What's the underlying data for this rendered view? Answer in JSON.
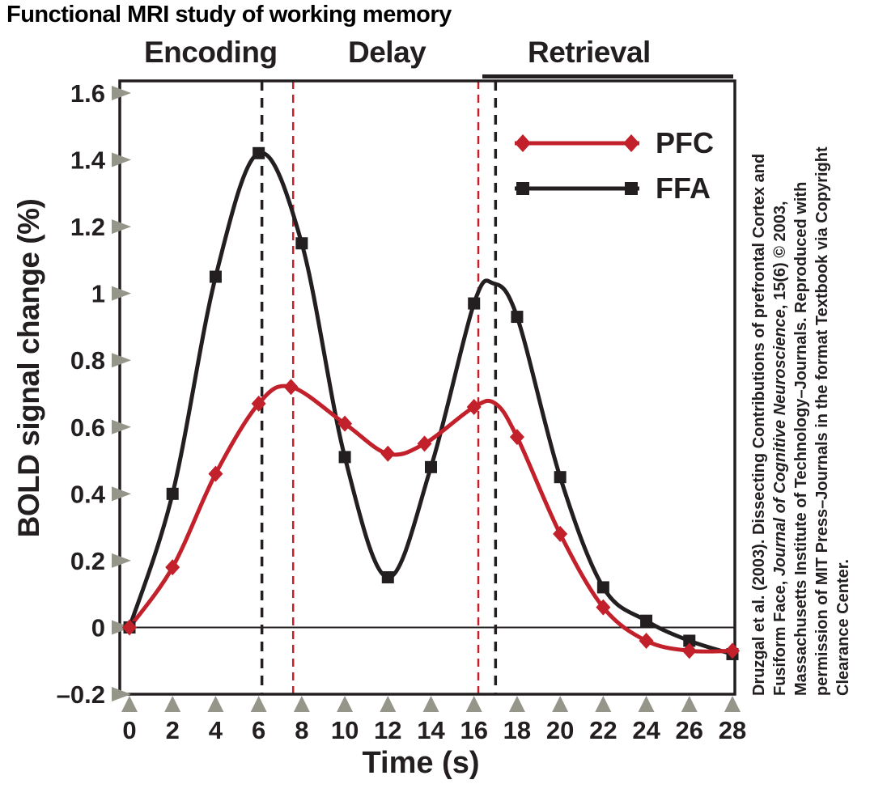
{
  "title": "Functional MRI study of working memory",
  "phases": [
    {
      "label": "Encoding"
    },
    {
      "label": "Delay"
    },
    {
      "label": "Retrieval"
    }
  ],
  "legend": [
    {
      "label": "PFC",
      "color": "#c2202a",
      "marker": "diamond"
    },
    {
      "label": "FFA",
      "color": "#231f20",
      "marker": "square"
    }
  ],
  "colors": {
    "pfc_red": "#c2202a",
    "ffa_black": "#231f20",
    "tick_triangle_gray": "#95958a"
  },
  "chart_data": {
    "type": "line",
    "title": "Functional MRI study of working memory",
    "xlabel": "Time  (s)",
    "ylabel": "BOLD signal change (%)",
    "xlim": [
      0,
      28
    ],
    "ylim": [
      -0.2,
      1.6
    ],
    "grid": false,
    "legend_position": "upper right inside",
    "x_ticks": [
      0,
      2,
      4,
      6,
      8,
      10,
      12,
      14,
      16,
      18,
      20,
      22,
      24,
      26,
      28
    ],
    "y_ticks": [
      {
        "v": 1.6,
        "label": "1.6"
      },
      {
        "v": 1.4,
        "label": "1.4"
      },
      {
        "v": 1.2,
        "label": "1.2"
      },
      {
        "v": 1.0,
        "label": "1"
      },
      {
        "v": 0.8,
        "label": "0.8"
      },
      {
        "v": 0.6,
        "label": "0.6"
      },
      {
        "v": 0.4,
        "label": "0.4"
      },
      {
        "v": 0.2,
        "label": "0.2"
      },
      {
        "v": 0.0,
        "label": "0"
      },
      {
        "v": -0.2,
        "label": "–0.2"
      }
    ],
    "series": [
      {
        "name": "FFA",
        "color": "#231f20",
        "marker": "square",
        "line_width": 5,
        "points": [
          [
            0,
            0.0
          ],
          [
            2,
            0.4
          ],
          [
            4,
            1.05
          ],
          [
            6,
            1.42
          ],
          [
            8,
            1.15
          ],
          [
            10,
            0.51
          ],
          [
            12,
            0.15
          ],
          [
            14,
            0.48
          ],
          [
            16,
            0.97
          ],
          [
            18,
            0.93
          ],
          [
            20,
            0.45
          ],
          [
            22,
            0.12
          ],
          [
            24,
            0.02
          ],
          [
            26,
            -0.04
          ],
          [
            28,
            -0.08
          ]
        ],
        "curve_extra": [
          [
            16.9,
            1.03
          ]
        ]
      },
      {
        "name": "PFC",
        "color": "#c2202a",
        "marker": "diamond",
        "line_width": 5,
        "points": [
          [
            0,
            0.0
          ],
          [
            2,
            0.18
          ],
          [
            4,
            0.46
          ],
          [
            6,
            0.67
          ],
          [
            7.5,
            0.72
          ],
          [
            10,
            0.61
          ],
          [
            12,
            0.52
          ],
          [
            13.7,
            0.55
          ],
          [
            16,
            0.66
          ],
          [
            18,
            0.57
          ],
          [
            20,
            0.28
          ],
          [
            22,
            0.06
          ],
          [
            24,
            -0.04
          ],
          [
            26,
            -0.07
          ],
          [
            28,
            -0.07
          ]
        ],
        "curve_extra": [
          [
            17,
            0.67
          ]
        ]
      }
    ],
    "vlines": [
      {
        "x": 6.15,
        "color": "#231f20",
        "width": 3.5,
        "dash": "12,9"
      },
      {
        "x": 7.6,
        "color": "#c2202a",
        "width": 2.5,
        "dash": "10,7"
      },
      {
        "x": 16.2,
        "color": "#c2202a",
        "width": 2.5,
        "dash": "10,7"
      },
      {
        "x": 17.0,
        "color": "#231f20",
        "width": 3.5,
        "dash": "12,9"
      }
    ],
    "zero_line": 0
  },
  "citation": {
    "lines": [
      [
        {
          "t": "Druzgal et al. (2003). Dissecting Contributions of prefrontal Cortex and"
        }
      ],
      [
        {
          "t": "Fusiform Face, "
        },
        {
          "t": "Journal of Cognitive Neuroscience",
          "italic": true
        },
        {
          "t": ", 15(6) © 2003,"
        }
      ],
      [
        {
          "t": "Massachusetts Institute of Technology–Journals. Reproduced with"
        }
      ],
      [
        {
          "t": "permission of MIT Press–Journals in the format Textbook via Copyright"
        }
      ],
      [
        {
          "t": "Clearance Center."
        }
      ]
    ]
  }
}
